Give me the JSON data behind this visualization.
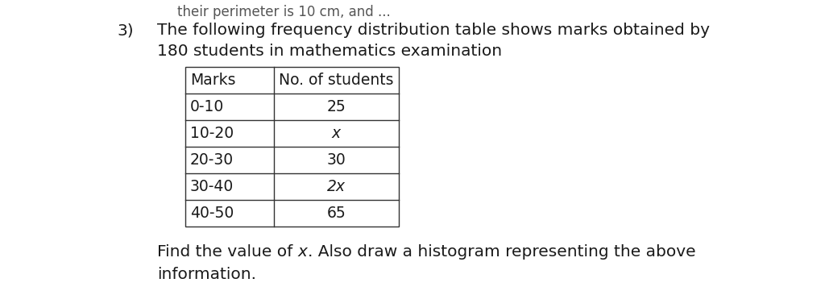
{
  "question_number": "3)",
  "line1": "The following frequency distribution table shows marks obtained by",
  "line2": "180 students in mathematics examination",
  "table_headers": [
    "Marks",
    "No. of students"
  ],
  "table_rows": [
    [
      "0-10",
      "25"
    ],
    [
      "10-20",
      "x"
    ],
    [
      "20-30",
      "30"
    ],
    [
      "30-40",
      "2x"
    ],
    [
      "40-50",
      "65"
    ]
  ],
  "footer_line1_a": "Find the value of ",
  "footer_line1_b": "x",
  "footer_line1_c": ". Also draw a histogram representing the above",
  "footer_line2": "information.",
  "bg_color": "#ffffff",
  "text_color": "#1a1a1a",
  "font_size_main": 14.5,
  "font_size_table": 13.5,
  "top_text_cut": "their perimeter is 10 cm, and ..."
}
